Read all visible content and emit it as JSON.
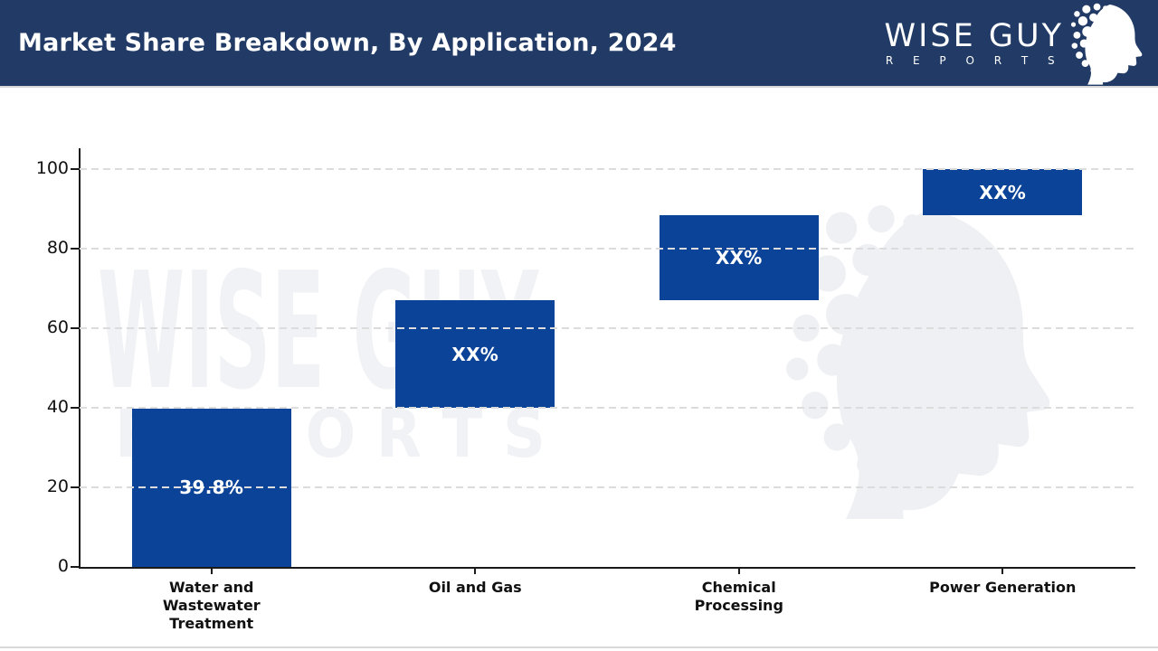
{
  "header": {
    "title": "Market Share Breakdown, By Application, 2024",
    "brand": {
      "name": "WISE GUY",
      "tagline": "R E P O R T S"
    },
    "bg_color": "#213a66"
  },
  "watermark": {
    "line1": "WISE GUY.",
    "line2": "R E P O R T S"
  },
  "chart_data": {
    "type": "bar",
    "subtype": "waterfall",
    "title": "Market Share Breakdown, By Application, 2024",
    "xlabel": "",
    "ylabel": "",
    "ylim": [
      0,
      105
    ],
    "yticks": [
      0,
      20,
      40,
      60,
      80,
      100
    ],
    "grid": "horizontal-dashed",
    "legend": "none",
    "bar_color": "#0a4397",
    "categories": [
      "Water and Wastewater Treatment",
      "Oil and Gas",
      "Chemical Processing",
      "Power Generation"
    ],
    "category_lines": [
      [
        "Water and",
        "Wastewater",
        "Treatment"
      ],
      [
        "Oil and Gas"
      ],
      [
        "Chemical",
        "Processing"
      ],
      [
        "Power Generation"
      ]
    ],
    "series": [
      {
        "category": "Water and Wastewater Treatment",
        "start": 0,
        "end": 39.8,
        "label": "39.8%"
      },
      {
        "category": "Oil and Gas",
        "start": 40,
        "end": 67,
        "label": "XX%"
      },
      {
        "category": "Chemical Processing",
        "start": 67,
        "end": 88.4,
        "label": "XX%"
      },
      {
        "category": "Power Generation",
        "start": 88.4,
        "end": 100,
        "label": "XX%"
      }
    ]
  }
}
